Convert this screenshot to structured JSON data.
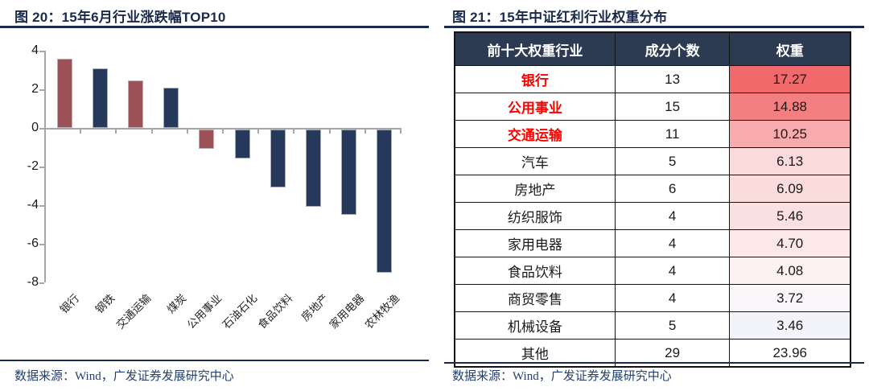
{
  "figure20": {
    "title": "图 20：15年6月行业涨跌幅TOP10",
    "source": "数据来源：Wind，广发证券发展研究中心"
  },
  "figure21": {
    "title": "图 21：15年中证红利行业权重分布",
    "source": "数据来源：Wind，广发证券发展研究中心",
    "table": {
      "columns": [
        "前十大权重行业",
        "成分个数",
        "权重"
      ],
      "rows": [
        {
          "industry": "银行",
          "count": "13",
          "weight": "17.27",
          "red": true,
          "bg": "#f2696b"
        },
        {
          "industry": "公用事业",
          "count": "15",
          "weight": "14.88",
          "red": true,
          "bg": "#f37f80"
        },
        {
          "industry": "交通运输",
          "count": "11",
          "weight": "10.25",
          "red": true,
          "bg": "#f7abac"
        },
        {
          "industry": "汽车",
          "count": "5",
          "weight": "6.13",
          "red": false,
          "bg": "#fbdadb"
        },
        {
          "industry": "房地产",
          "count": "6",
          "weight": "6.09",
          "red": false,
          "bg": "#fbdcdc"
        },
        {
          "industry": "纺织服饰",
          "count": "4",
          "weight": "5.46",
          "red": false,
          "bg": "#fbe0e1"
        },
        {
          "industry": "家用电器",
          "count": "4",
          "weight": "4.70",
          "red": false,
          "bg": "#fce8e8"
        },
        {
          "industry": "食品饮料",
          "count": "4",
          "weight": "4.08",
          "red": false,
          "bg": "#fdf1f1"
        },
        {
          "industry": "商贸零售",
          "count": "4",
          "weight": "3.72",
          "red": false,
          "bg": "#faf7fa"
        },
        {
          "industry": "机械设备",
          "count": "5",
          "weight": "3.46",
          "red": false,
          "bg": "#f3f3fa"
        },
        {
          "industry": "其他",
          "count": "29",
          "weight": "23.96",
          "red": false,
          "bg": "#ffffff"
        }
      ]
    }
  },
  "chart_data": [
    {
      "type": "bar",
      "title": "15年6月行业涨跌幅TOP10",
      "categories": [
        "银行",
        "钢铁",
        "交通运输",
        "煤炭",
        "公用事业",
        "石油石化",
        "食品饮料",
        "房地产",
        "家用电器",
        "农林牧渔"
      ],
      "values": [
        3.6,
        3.1,
        2.45,
        2.1,
        -1.0,
        -1.5,
        -3.0,
        -4.0,
        -4.4,
        -7.4
      ],
      "bar_colors": [
        "#9b5156",
        "#27395a",
        "#9b5156",
        "#27395a",
        "#9b5156",
        "#27395a",
        "#27395a",
        "#27395a",
        "#27395a",
        "#27395a"
      ],
      "ylim": [
        -8,
        4
      ],
      "yticks": [
        4,
        2,
        0,
        -2,
        -4,
        -6,
        -8
      ],
      "xlabel": "",
      "ylabel": "",
      "grid": false,
      "legend": false
    },
    {
      "type": "table",
      "title": "15年中证红利行业权重分布",
      "columns": [
        "前十大权重行业",
        "成分个数",
        "权重"
      ],
      "rows": [
        [
          "银行",
          13,
          17.27
        ],
        [
          "公用事业",
          15,
          14.88
        ],
        [
          "交通运输",
          11,
          10.25
        ],
        [
          "汽车",
          5,
          6.13
        ],
        [
          "房地产",
          6,
          6.09
        ],
        [
          "纺织服饰",
          4,
          5.46
        ],
        [
          "家用电器",
          4,
          4.7
        ],
        [
          "食品饮料",
          4,
          4.08
        ],
        [
          "商贸零售",
          4,
          3.72
        ],
        [
          "机械设备",
          5,
          3.46
        ],
        [
          "其他",
          29,
          23.96
        ]
      ]
    }
  ],
  "colors": {
    "bar_negative_navy": "#27395a",
    "bar_highlight_red": "#9b5156",
    "title_navy": "#1b2a4a",
    "table_header_bg": "#2c3b52",
    "table_red_text": "#fe0000",
    "weight_heat_max": "#f2696b",
    "source_text": "#23406e",
    "axis_grey": "#a6a6a6"
  }
}
